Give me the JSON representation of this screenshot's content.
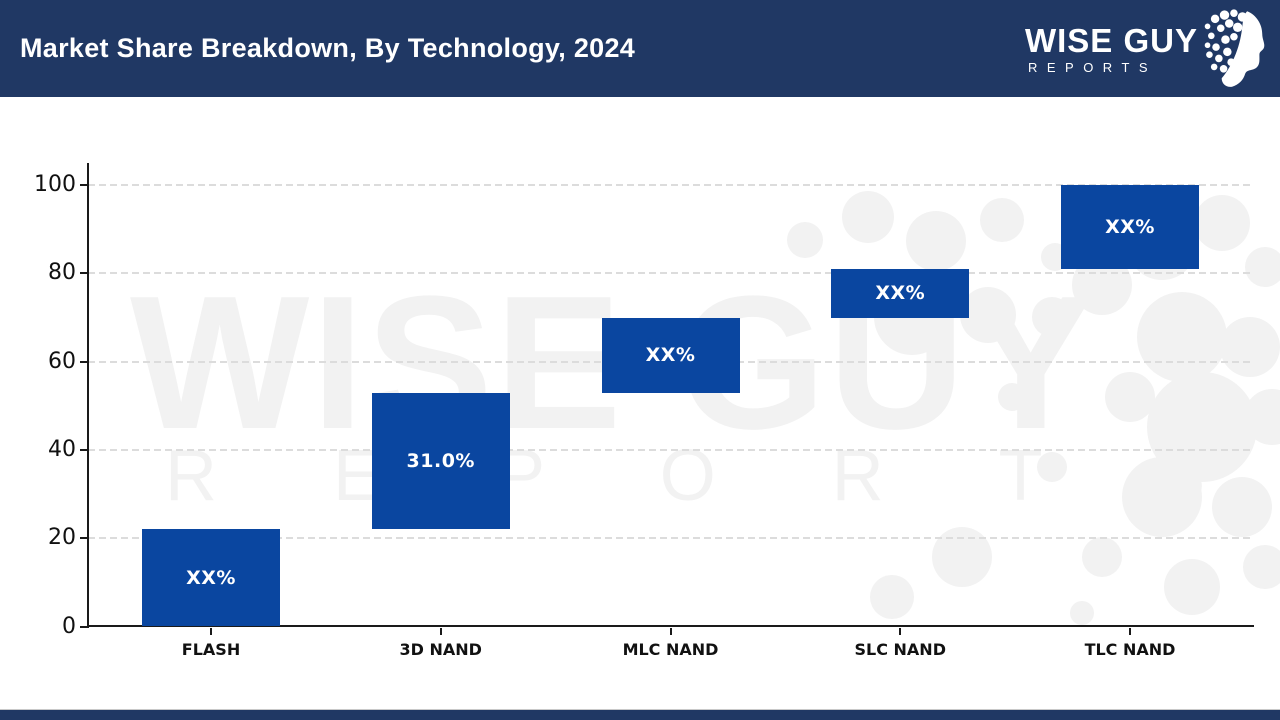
{
  "header": {
    "title": "Market Share Breakdown, By Technology, 2024",
    "logo": {
      "name": "WISE GUY",
      "tagline": "REPORTS"
    }
  },
  "watermark": {
    "name": "WISE GUY",
    "tagline": "R E P O R T S"
  },
  "chart_data": {
    "type": "bar",
    "subtype": "waterfall",
    "title": "Market Share Breakdown, By Technology, 2024",
    "categories": [
      "FLASH",
      "3D NAND",
      "MLC NAND",
      "SLC NAND",
      "TLC NAND"
    ],
    "series": [
      {
        "name": "Market share (%)",
        "segments": [
          {
            "category": "FLASH",
            "start": 0,
            "end": 22,
            "label": "XX%"
          },
          {
            "category": "3D NAND",
            "start": 22,
            "end": 53,
            "label": "31.0%"
          },
          {
            "category": "MLC NAND",
            "start": 53,
            "end": 70,
            "label": "XX%"
          },
          {
            "category": "SLC NAND",
            "start": 70,
            "end": 81,
            "label": "XX%"
          },
          {
            "category": "TLC NAND",
            "start": 81,
            "end": 100,
            "label": "XX%"
          }
        ]
      }
    ],
    "xlabel": "",
    "ylabel": "",
    "ylim": [
      0,
      100
    ],
    "yticks": [
      0,
      20,
      40,
      60,
      80,
      100
    ],
    "ytick_labels": [
      "0",
      "20",
      "40",
      "60",
      "80",
      "100"
    ],
    "grid": {
      "horizontal": true,
      "style": "dashed",
      "color": "#dcdcdc"
    },
    "legend": "none",
    "bar_color": "#0a46a0",
    "bar_label_color": "#ffffff"
  },
  "colors": {
    "header_bg": "#203864",
    "footer_bg": "#203864",
    "axis": "#1a1a1a",
    "bar": "#0a46a0",
    "watermark": "#f2f2f2"
  }
}
